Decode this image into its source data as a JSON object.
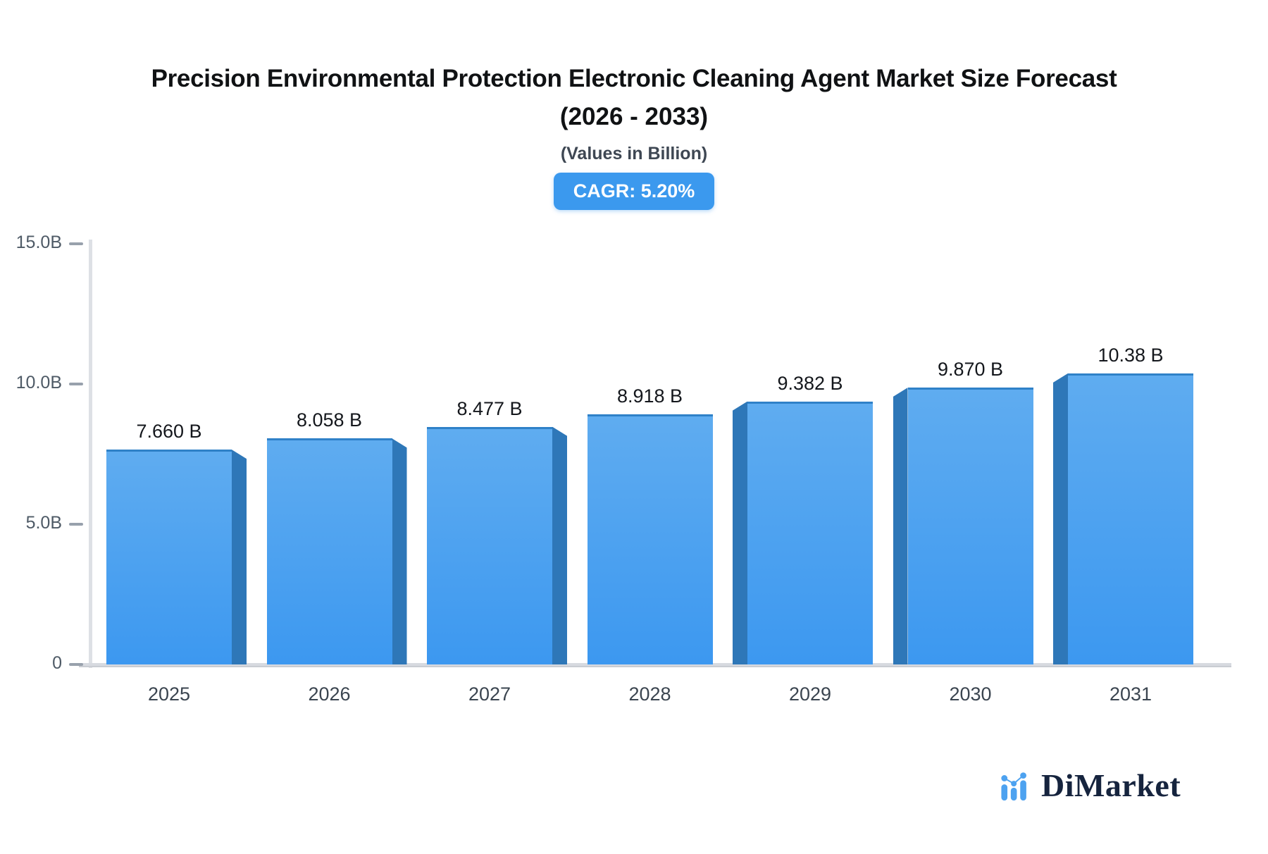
{
  "header": {
    "title_line1": "Precision Environmental Protection Electronic Cleaning Agent Market Size Forecast",
    "title_line2": "(2026 - 2033)",
    "subtitle": "(Values in Billion)",
    "cagr_label": "CAGR: 5.20%"
  },
  "chart_data": {
    "type": "bar",
    "title": "Precision Environmental Protection Electronic Cleaning Agent Market Size Forecast (2026 - 2033)",
    "subtitle": "(Values in Billion)",
    "cagr": "5.20%",
    "categories": [
      "2025",
      "2026",
      "2027",
      "2028",
      "2029",
      "2030",
      "2031"
    ],
    "values": [
      7.66,
      8.058,
      8.477,
      8.918,
      9.382,
      9.87,
      10.38
    ],
    "value_labels": [
      "7.660 B",
      "8.058 B",
      "8.477 B",
      "8.918 B",
      "9.382 B",
      "9.870 B",
      "10.38 B"
    ],
    "xlabel": "",
    "ylabel": "",
    "ylim": [
      0,
      15
    ],
    "yticks": {
      "values": [
        0,
        5,
        10,
        15
      ],
      "labels": [
        "0",
        "5.0B",
        "10.0B",
        "15.0B"
      ]
    },
    "grid": false,
    "legend": false,
    "colors": {
      "bar_top": "#5FACF0",
      "bar_bottom": "#3C98F0",
      "bar_side": "#2E77B8",
      "bar_top_edge": "#2F81C8",
      "axis_line": "#DDE0E5",
      "baseline": "#D7DAE0",
      "tick": "#98A1AC",
      "y_label": "#4E5A66",
      "x_label": "#3B4550",
      "value_label": "#14171C",
      "badge_bg": "#3B99EE",
      "badge_text": "#FFFFFF"
    }
  },
  "footer": {
    "brand": "DiMarket"
  }
}
